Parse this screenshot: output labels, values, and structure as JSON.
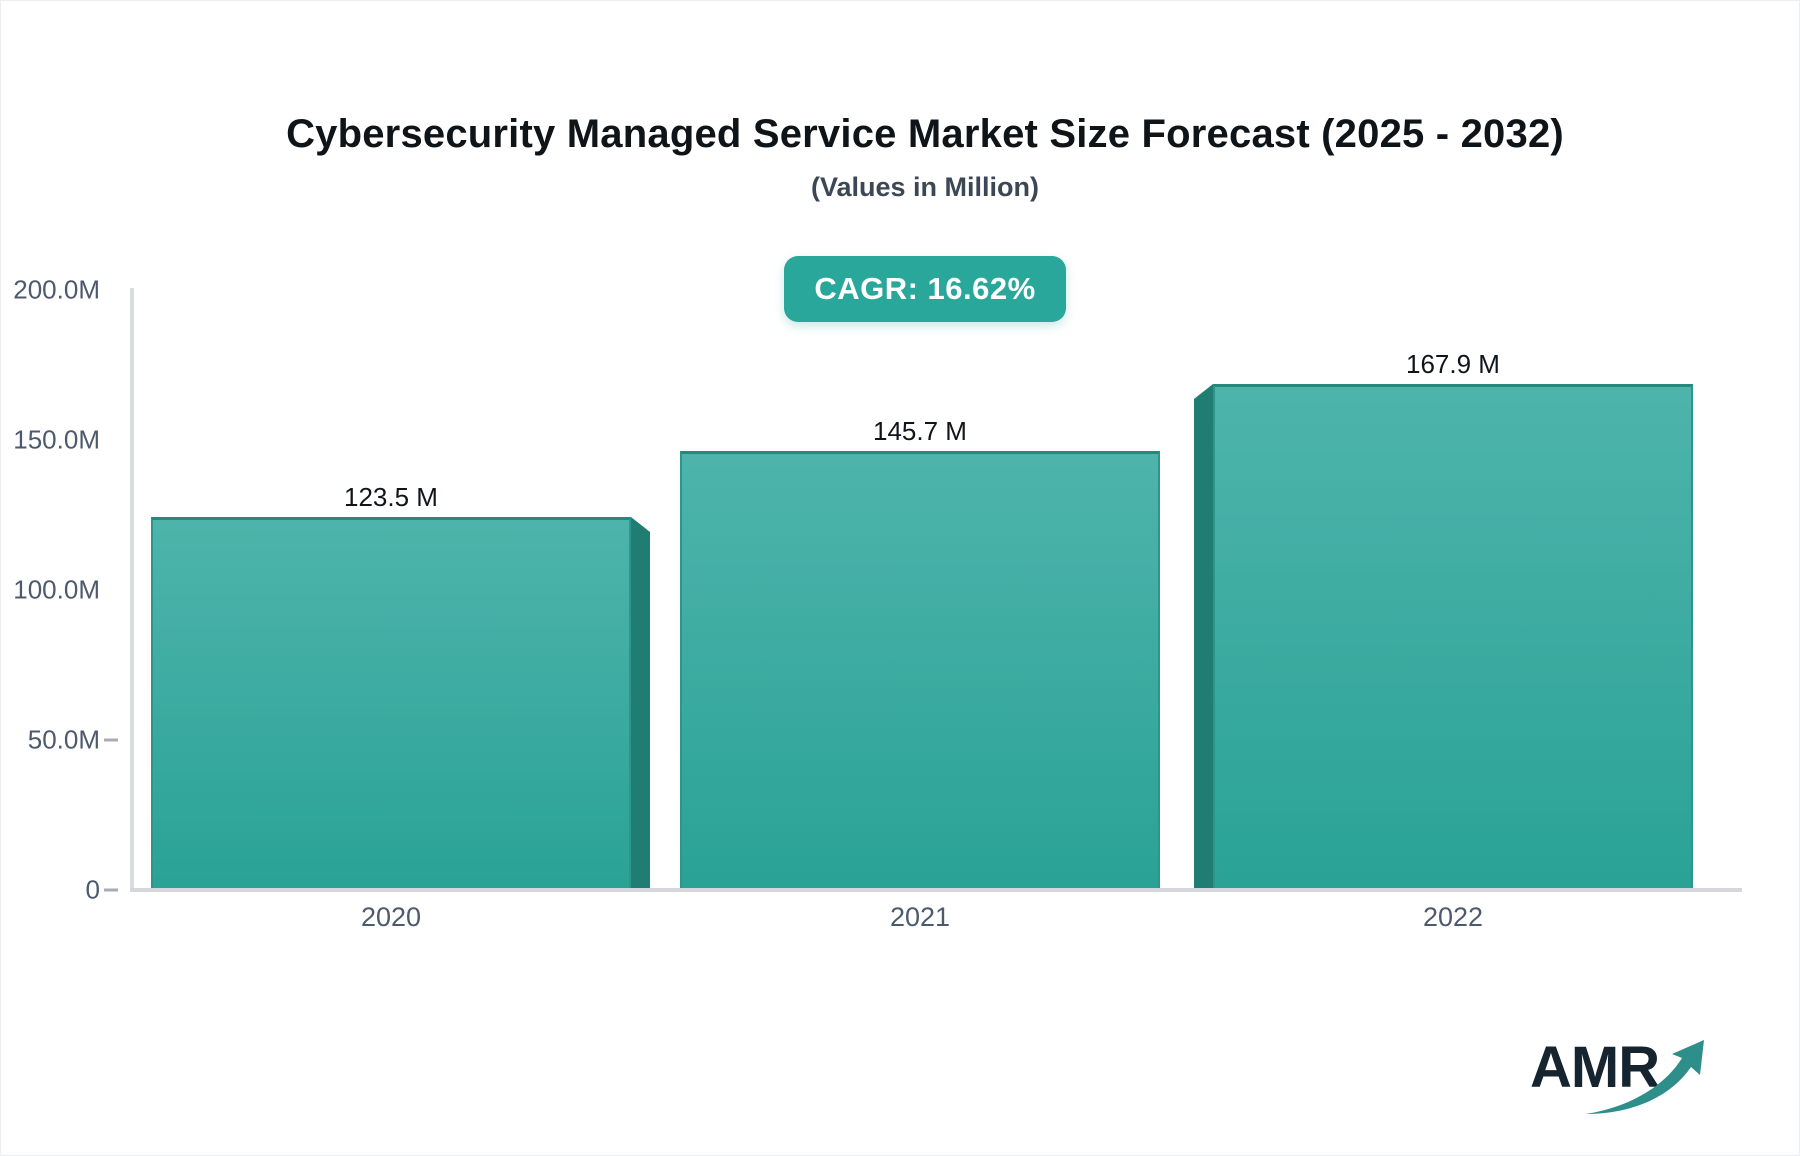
{
  "page": {
    "title": "Cybersecurity Managed Service Market Size Forecast (2025 - 2032)",
    "subtitle": "(Values in Million)",
    "cagr_label": "CAGR: 16.62%"
  },
  "chart_data": {
    "type": "bar",
    "title": "Cybersecurity Managed Service Market Size Forecast (2025 - 2032)",
    "subtitle": "(Values in Million)",
    "cagr_pct": 16.62,
    "unit": "Million",
    "categories": [
      "2020",
      "2021",
      "2022"
    ],
    "values": [
      123.5,
      145.7,
      167.9
    ],
    "value_labels": [
      "123.5 M",
      "145.7 M",
      "167.9 M"
    ],
    "ylim": [
      0,
      200
    ],
    "yticks": [
      {
        "value": 0,
        "label": "0",
        "dash": true
      },
      {
        "value": 50,
        "label": "50.0M",
        "dash": true
      },
      {
        "value": 100,
        "label": "100.0M",
        "dash": false
      },
      {
        "value": 150,
        "label": "150.0M",
        "dash": false
      },
      {
        "value": 200,
        "label": "200.0M",
        "dash": false
      }
    ],
    "grid": false,
    "legend": false,
    "colors": {
      "bar_gradient_top": "#4eb4ab",
      "bar_gradient_bottom": "#2aa296",
      "bar_top_edge": "#27887d",
      "bar_side_edge": "#2f958a",
      "bar_bevel_side": "#1f7d73",
      "cagr_badge_bg": "#2aa79b",
      "axis_line": "#d9dce1",
      "tick_text": "#4d5a6e",
      "title_text": "#0f1418"
    }
  },
  "logo": {
    "text": "AMR",
    "arrow_icon": "growth-arrow-icon",
    "arrow_color": "#2e8f8a"
  }
}
